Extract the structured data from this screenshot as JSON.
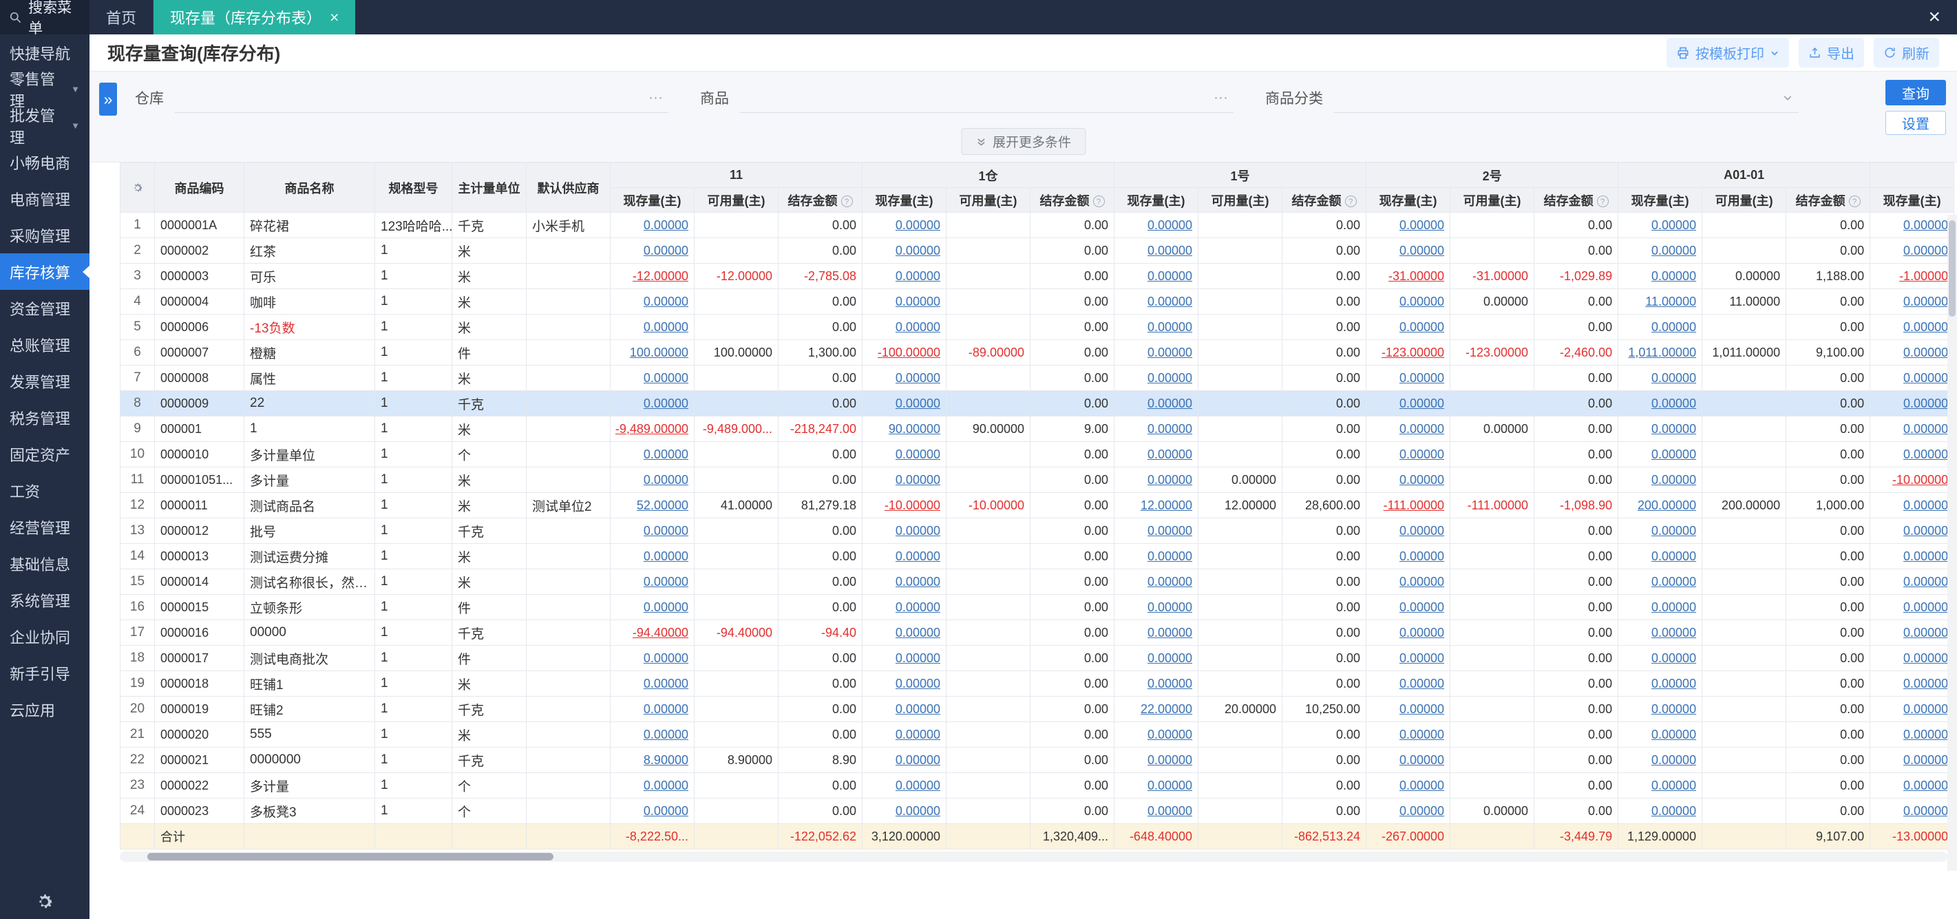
{
  "glyphs": {
    "close": "×",
    "collapse": "»",
    "arrow_down": "▼",
    "browse": "···"
  },
  "window": {
    "close": "×"
  },
  "tabs": [
    {
      "label": "首页",
      "active": false
    },
    {
      "label": "现存量（库存分布表）",
      "active": true
    }
  ],
  "sidebar": {
    "search_label": "搜索菜单",
    "arrow_glyph": "▼",
    "items": [
      {
        "label": "快捷导航"
      },
      {
        "label": "零售管理",
        "arrow": true
      },
      {
        "label": "批发管理",
        "arrow": true
      },
      {
        "label": "小畅电商"
      },
      {
        "label": "电商管理"
      },
      {
        "label": "采购管理"
      },
      {
        "label": "库存核算",
        "active": true
      },
      {
        "label": "资金管理"
      },
      {
        "label": "总账管理"
      },
      {
        "label": "发票管理"
      },
      {
        "label": "税务管理"
      },
      {
        "label": "固定资产"
      },
      {
        "label": "工资"
      },
      {
        "label": "经营管理"
      },
      {
        "label": "基础信息"
      },
      {
        "label": "系统管理"
      },
      {
        "label": "企业协同"
      },
      {
        "label": "新手引导"
      },
      {
        "label": "云应用"
      }
    ]
  },
  "page": {
    "title": "现存量查询(库存分布)"
  },
  "toolbar": {
    "print_label": "按模板打印",
    "export_label": "导出",
    "refresh_label": "刷新"
  },
  "filters": {
    "warehouse_label": "仓库",
    "goods_label": "商品",
    "category_label": "商品分类",
    "query_label": "查询",
    "settings_label": "设置",
    "expand_label": "展开更多条件"
  },
  "table": {
    "fixed_headers": [
      "商品编码",
      "商品名称",
      "规格型号",
      "主计量单位",
      "默认供应商"
    ],
    "sub_headers": [
      "现存量(主)",
      "可用量(主)",
      "结存金额"
    ],
    "groups": [
      {
        "name": "11",
        "cols": [
          "现存量(主)",
          "可用量(主)",
          "结存金额"
        ]
      },
      {
        "name": "1仓",
        "cols": [
          "现存量(主)",
          "可用量(主)",
          "结存金额"
        ]
      },
      {
        "name": "1号",
        "cols": [
          "现存量(主)",
          "可用量(主)",
          "结存金额"
        ]
      },
      {
        "name": "2号",
        "cols": [
          "现存量(主)",
          "可用量(主)",
          "结存金额"
        ]
      },
      {
        "name": "A01-01",
        "cols": [
          "现存量(主)",
          "可用量(主)",
          "结存金额"
        ]
      },
      {
        "name": "",
        "cols": [
          "现存量(主)"
        ]
      }
    ],
    "rows": [
      {
        "num": 1,
        "code": "0000001A",
        "name": "碎花裙",
        "spec": "123哈哈哈...",
        "unit": "千克",
        "supplier": "小米手机",
        "values": [
          "0.00000",
          "",
          "0.00",
          "0.00000",
          "",
          "0.00",
          "0.00000",
          "",
          "0.00",
          "0.00000",
          "",
          "0.00",
          "0.00000",
          "",
          "0.00",
          "0.00000"
        ]
      },
      {
        "num": 2,
        "code": "0000002",
        "name": "红茶",
        "spec": "1",
        "unit": "米",
        "supplier": "",
        "values": [
          "0.00000",
          "",
          "0.00",
          "0.00000",
          "",
          "0.00",
          "0.00000",
          "",
          "0.00",
          "0.00000",
          "",
          "0.00",
          "0.00000",
          "",
          "0.00",
          "0.00000"
        ]
      },
      {
        "num": 3,
        "code": "0000003",
        "name": "可乐",
        "spec": "1",
        "unit": "米",
        "supplier": "",
        "values": [
          "-12.00000",
          "-12.00000",
          "-2,785.08",
          "0.00000",
          "",
          "0.00",
          "0.00000",
          "",
          "0.00",
          "-31.00000",
          "-31.00000",
          "-1,029.89",
          "0.00000",
          "0.00000",
          "1,188.00",
          "-1.00000"
        ]
      },
      {
        "num": 4,
        "code": "0000004",
        "name": "咖啡",
        "spec": "1",
        "unit": "米",
        "supplier": "",
        "values": [
          "0.00000",
          "",
          "0.00",
          "0.00000",
          "",
          "0.00",
          "0.00000",
          "",
          "0.00",
          "0.00000",
          "0.00000",
          "0.00",
          "11.00000",
          "11.00000",
          "0.00",
          "0.00000"
        ]
      },
      {
        "num": 5,
        "code": "0000006",
        "name": "-13负数",
        "name_red": true,
        "spec": "1",
        "unit": "米",
        "supplier": "",
        "values": [
          "0.00000",
          "",
          "0.00",
          "0.00000",
          "",
          "0.00",
          "0.00000",
          "",
          "0.00",
          "0.00000",
          "",
          "0.00",
          "0.00000",
          "",
          "0.00",
          "0.00000"
        ]
      },
      {
        "num": 6,
        "code": "0000007",
        "name": "橙糖",
        "spec": "1",
        "unit": "件",
        "supplier": "",
        "values": [
          "100.00000",
          "100.00000",
          "1,300.00",
          "-100.00000",
          "-89.00000",
          "0.00",
          "0.00000",
          "",
          "0.00",
          "-123.00000",
          "-123.00000",
          "-2,460.00",
          "1,011.00000",
          "1,011.00000",
          "9,100.00",
          "0.00000"
        ]
      },
      {
        "num": 7,
        "code": "0000008",
        "name": "属性",
        "spec": "1",
        "unit": "米",
        "supplier": "",
        "values": [
          "0.00000",
          "",
          "0.00",
          "0.00000",
          "",
          "0.00",
          "0.00000",
          "",
          "0.00",
          "0.00000",
          "",
          "0.00",
          "0.00000",
          "",
          "0.00",
          "0.00000"
        ]
      },
      {
        "num": 8,
        "code": "0000009",
        "name": "22",
        "spec": "1",
        "unit": "千克",
        "supplier": "",
        "selected": true,
        "values": [
          "0.00000",
          "",
          "0.00",
          "0.00000",
          "",
          "0.00",
          "0.00000",
          "",
          "0.00",
          "0.00000",
          "",
          "0.00",
          "0.00000",
          "",
          "0.00",
          "0.00000"
        ]
      },
      {
        "num": 9,
        "code": "000001",
        "name": "1",
        "spec": "1",
        "unit": "米",
        "supplier": "",
        "values": [
          "-9,489.00000",
          "-9,489.000...",
          "-218,247.00",
          "90.00000",
          "90.00000",
          "9.00",
          "0.00000",
          "",
          "0.00",
          "0.00000",
          "0.00000",
          "0.00",
          "0.00000",
          "",
          "0.00",
          "0.00000"
        ]
      },
      {
        "num": 10,
        "code": "0000010",
        "name": "多计量单位",
        "spec": "1",
        "unit": "个",
        "supplier": "",
        "values": [
          "0.00000",
          "",
          "0.00",
          "0.00000",
          "",
          "0.00",
          "0.00000",
          "",
          "0.00",
          "0.00000",
          "",
          "0.00",
          "0.00000",
          "",
          "0.00",
          "0.00000"
        ]
      },
      {
        "num": 11,
        "code": "000001051...",
        "name": "多计量",
        "spec": "1",
        "unit": "米",
        "supplier": "",
        "values": [
          "0.00000",
          "",
          "0.00",
          "0.00000",
          "",
          "0.00",
          "0.00000",
          "0.00000",
          "0.00",
          "0.00000",
          "",
          "0.00",
          "0.00000",
          "",
          "0.00",
          "-10.00000"
        ]
      },
      {
        "num": 12,
        "code": "0000011",
        "name": "测试商品名",
        "spec": "1",
        "unit": "米",
        "supplier": "测试单位2",
        "values": [
          "52.00000",
          "41.00000",
          "81,279.18",
          "-10.00000",
          "-10.00000",
          "0.00",
          "12.00000",
          "12.00000",
          "28,600.00",
          "-111.00000",
          "-111.00000",
          "-1,098.90",
          "200.00000",
          "200.00000",
          "1,000.00",
          "0.00000"
        ]
      },
      {
        "num": 13,
        "code": "0000012",
        "name": "批号",
        "spec": "1",
        "unit": "千克",
        "supplier": "",
        "values": [
          "0.00000",
          "",
          "0.00",
          "0.00000",
          "",
          "0.00",
          "0.00000",
          "",
          "0.00",
          "0.00000",
          "",
          "0.00",
          "0.00000",
          "",
          "0.00",
          "0.00000"
        ]
      },
      {
        "num": 14,
        "code": "0000013",
        "name": "测试运费分摊",
        "spec": "1",
        "unit": "米",
        "supplier": "",
        "values": [
          "0.00000",
          "",
          "0.00",
          "0.00000",
          "",
          "0.00",
          "0.00000",
          "",
          "0.00",
          "0.00000",
          "",
          "0.00",
          "0.00000",
          "",
          "0.00",
          "0.00000"
        ]
      },
      {
        "num": 15,
        "code": "0000014",
        "name": "测试名称很长，然后数...",
        "spec": "1",
        "unit": "米",
        "supplier": "",
        "values": [
          "0.00000",
          "",
          "0.00",
          "0.00000",
          "",
          "0.00",
          "0.00000",
          "",
          "0.00",
          "0.00000",
          "",
          "0.00",
          "0.00000",
          "",
          "0.00",
          "0.00000"
        ]
      },
      {
        "num": 16,
        "code": "0000015",
        "name": "立顿条形",
        "spec": "1",
        "unit": "件",
        "supplier": "",
        "values": [
          "0.00000",
          "",
          "0.00",
          "0.00000",
          "",
          "0.00",
          "0.00000",
          "",
          "0.00",
          "0.00000",
          "",
          "0.00",
          "0.00000",
          "",
          "0.00",
          "0.00000"
        ]
      },
      {
        "num": 17,
        "code": "0000016",
        "name": "00000",
        "spec": "1",
        "unit": "千克",
        "supplier": "",
        "values": [
          "-94.40000",
          "-94.40000",
          "-94.40",
          "0.00000",
          "",
          "0.00",
          "0.00000",
          "",
          "0.00",
          "0.00000",
          "",
          "0.00",
          "0.00000",
          "",
          "0.00",
          "0.00000"
        ]
      },
      {
        "num": 18,
        "code": "0000017",
        "name": "测试电商批次",
        "spec": "1",
        "unit": "件",
        "supplier": "",
        "values": [
          "0.00000",
          "",
          "0.00",
          "0.00000",
          "",
          "0.00",
          "0.00000",
          "",
          "0.00",
          "0.00000",
          "",
          "0.00",
          "0.00000",
          "",
          "0.00",
          "0.00000"
        ]
      },
      {
        "num": 19,
        "code": "0000018",
        "name": "旺铺1",
        "spec": "1",
        "unit": "米",
        "supplier": "",
        "values": [
          "0.00000",
          "",
          "0.00",
          "0.00000",
          "",
          "0.00",
          "0.00000",
          "",
          "0.00",
          "0.00000",
          "",
          "0.00",
          "0.00000",
          "",
          "0.00",
          "0.00000"
        ]
      },
      {
        "num": 20,
        "code": "0000019",
        "name": "旺铺2",
        "spec": "1",
        "unit": "千克",
        "supplier": "",
        "values": [
          "0.00000",
          "",
          "0.00",
          "0.00000",
          "",
          "0.00",
          "22.00000",
          "20.00000",
          "10,250.00",
          "0.00000",
          "",
          "0.00",
          "0.00000",
          "",
          "0.00",
          "0.00000"
        ]
      },
      {
        "num": 21,
        "code": "0000020",
        "name": "555",
        "spec": "1",
        "unit": "米",
        "supplier": "",
        "values": [
          "0.00000",
          "",
          "0.00",
          "0.00000",
          "",
          "0.00",
          "0.00000",
          "",
          "0.00",
          "0.00000",
          "",
          "0.00",
          "0.00000",
          "",
          "0.00",
          "0.00000"
        ]
      },
      {
        "num": 22,
        "code": "0000021",
        "name": "0000000",
        "spec": "1",
        "unit": "千克",
        "supplier": "",
        "values": [
          "8.90000",
          "8.90000",
          "8.90",
          "0.00000",
          "",
          "0.00",
          "0.00000",
          "",
          "0.00",
          "0.00000",
          "",
          "0.00",
          "0.00000",
          "",
          "0.00",
          "0.00000"
        ]
      },
      {
        "num": 23,
        "code": "0000022",
        "name": "多计量",
        "spec": "1",
        "unit": "个",
        "supplier": "",
        "values": [
          "0.00000",
          "",
          "0.00",
          "0.00000",
          "",
          "0.00",
          "0.00000",
          "",
          "0.00",
          "0.00000",
          "",
          "0.00",
          "0.00000",
          "",
          "0.00",
          "0.00000"
        ]
      },
      {
        "num": 24,
        "code": "0000023",
        "name": "多板凳3",
        "spec": "1",
        "unit": "个",
        "supplier": "",
        "values": [
          "0.00000",
          "",
          "0.00",
          "0.00000",
          "",
          "0.00",
          "0.00000",
          "",
          "0.00",
          "0.00000",
          "0.00000",
          "0.00",
          "0.00000",
          "",
          "0.00",
          "0.00000"
        ]
      }
    ],
    "total": {
      "label": "合计",
      "values": [
        "-8,222.50...",
        "",
        "-122,052.62",
        "3,120.00000",
        "",
        "1,320,409...",
        "-648.40000",
        "",
        "-862,513.24",
        "-267.00000",
        "",
        "-3,449.79",
        "1,129.00000",
        "",
        "9,107.00",
        "-13.00000"
      ]
    }
  }
}
